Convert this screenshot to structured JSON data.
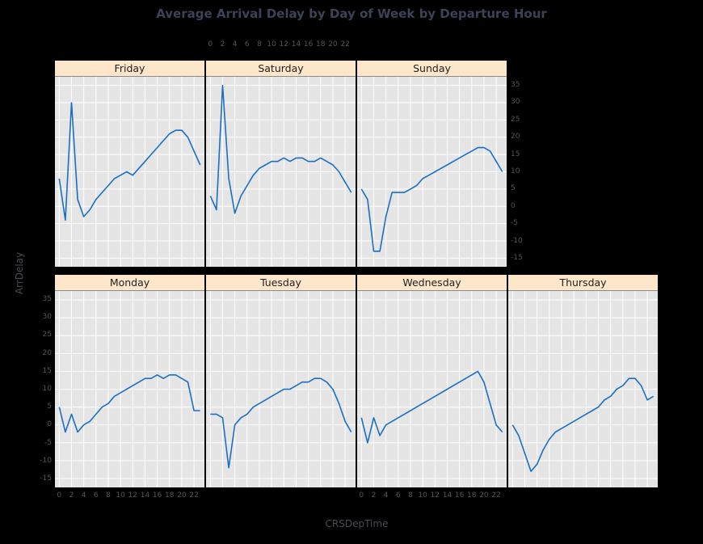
{
  "chart_data": {
    "type": "line",
    "title": "Average Arrival Delay by Day of Week by Departure Hour",
    "xlabel": "CRSDepTime",
    "ylabel": "ArrDelay",
    "legend_position": "none",
    "grid": true,
    "x": [
      0,
      1,
      2,
      3,
      4,
      5,
      6,
      7,
      8,
      9,
      10,
      11,
      12,
      13,
      14,
      15,
      16,
      17,
      18,
      19,
      20,
      21,
      22,
      23
    ],
    "xticks": [
      0,
      2,
      4,
      6,
      8,
      10,
      12,
      14,
      16,
      18,
      20,
      22
    ],
    "yticks": [
      35,
      30,
      25,
      20,
      15,
      10,
      5,
      0,
      -5,
      -10,
      -15
    ],
    "xlim": [
      -0.7,
      23.7
    ],
    "ylim": [
      -17.5,
      37.5
    ],
    "line_color": "#1b6fc2",
    "panel_bg": "#e5e5e5",
    "grid_color": "#ffffff",
    "strip_bg": "#fde6c9",
    "panels": [
      {
        "label": "Friday",
        "values": [
          8,
          -4,
          30,
          2,
          -3,
          -1,
          2,
          4,
          6,
          8,
          9,
          10,
          9,
          11,
          13,
          15,
          17,
          19,
          21,
          22,
          22,
          20,
          16,
          12
        ]
      },
      {
        "label": "Saturday",
        "values": [
          3,
          -1,
          35,
          8,
          -2,
          3,
          6,
          9,
          11,
          12,
          13,
          13,
          14,
          13,
          14,
          14,
          13,
          13,
          14,
          13,
          12,
          10,
          7,
          4
        ]
      },
      {
        "label": "Sunday",
        "values": [
          5,
          2,
          -13,
          -13,
          -3,
          4,
          4,
          4,
          5,
          6,
          8,
          9,
          10,
          11,
          12,
          13,
          14,
          15,
          16,
          17,
          17,
          16,
          13,
          10
        ]
      },
      {
        "label": "Monday",
        "values": [
          5,
          -2,
          3,
          -2,
          0,
          1,
          3,
          5,
          6,
          8,
          9,
          10,
          11,
          12,
          13,
          13,
          14,
          13,
          14,
          14,
          13,
          12,
          4,
          4
        ]
      },
      {
        "label": "Tuesday",
        "values": [
          3,
          3,
          2,
          -12,
          0,
          2,
          3,
          5,
          6,
          7,
          8,
          9,
          10,
          10,
          11,
          12,
          12,
          13,
          13,
          12,
          10,
          6,
          1,
          -2
        ]
      },
      {
        "label": "Wednesday",
        "values": [
          2,
          -5,
          2,
          -3,
          0,
          1,
          2,
          3,
          4,
          5,
          6,
          7,
          8,
          9,
          10,
          11,
          12,
          13,
          14,
          15,
          12,
          6,
          0,
          -2
        ]
      },
      {
        "label": "Thursday",
        "values": [
          0,
          -3,
          -8,
          -13,
          -11,
          -7,
          -4,
          -2,
          -1,
          0,
          1,
          2,
          3,
          4,
          5,
          7,
          8,
          10,
          11,
          13,
          13,
          11,
          7,
          8
        ]
      }
    ]
  }
}
